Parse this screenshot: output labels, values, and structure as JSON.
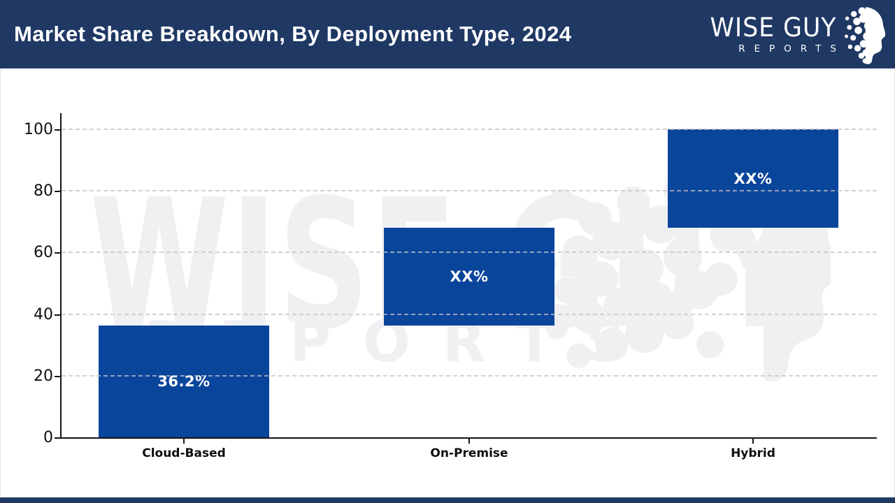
{
  "header": {
    "title": "Market Share Breakdown, By Deployment Type, 2024",
    "logo": {
      "line1": "WISE GUY",
      "line2": "REPORTS"
    }
  },
  "watermark": {
    "line1": "WISE GUY",
    "line2": "REPORTS"
  },
  "chart_data": {
    "type": "bar",
    "subtype": "floating-waterfall",
    "title": "Market Share Breakdown, By Deployment Type, 2024",
    "categories": [
      "Cloud-Based",
      "On-Premise",
      "Hybrid"
    ],
    "segments": [
      {
        "category": "Cloud-Based",
        "start": 0,
        "end": 36.2,
        "label": "36.2%"
      },
      {
        "category": "On-Premise",
        "start": 36.2,
        "end": 68,
        "label": "XX%"
      },
      {
        "category": "Hybrid",
        "start": 68,
        "end": 100,
        "label": "XX%"
      }
    ],
    "xlabel": "",
    "ylabel": "",
    "ylim": [
      0,
      100
    ],
    "yticks": [
      0,
      20,
      40,
      60,
      80,
      100
    ],
    "grid": "horizontal-dashed-over-bars",
    "legend": "none",
    "bar_color": "#0A459C",
    "bar_label_color": "#FFFFFF",
    "axis_color": "#151515"
  },
  "colors": {
    "header_navy": "#1F3864",
    "footer_navy": "#1F3864",
    "watermark_gray": "#F0F0F2",
    "grid_gray": "#C3C3C3"
  }
}
